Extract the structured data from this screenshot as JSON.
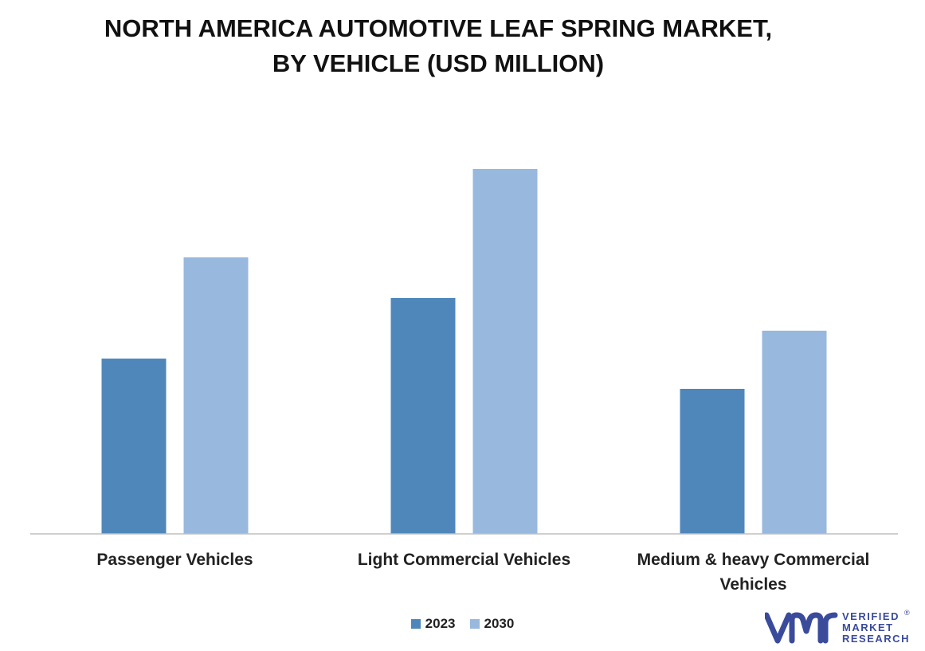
{
  "chart_data": {
    "type": "bar",
    "title_lines": [
      "NORTH AMERICA AUTOMOTIVE LEAF SPRING MARKET,",
      "BY VEHICLE (USD MILLION)"
    ],
    "categories": [
      {
        "lines": [
          "Passenger Vehicles"
        ]
      },
      {
        "lines": [
          "Light Commercial Vehicles"
        ]
      },
      {
        "lines": [
          "Medium & heavy Commercial",
          "Vehicles"
        ]
      }
    ],
    "series": [
      {
        "name": "2023",
        "color": "#4f87bb",
        "values": [
          220,
          296,
          182
        ]
      },
      {
        "name": "2030",
        "color": "#98b8de",
        "values": [
          347,
          458,
          255
        ]
      }
    ],
    "ylim": [
      0,
      500
    ],
    "grid": false,
    "legend_position": "bottom"
  },
  "brand": {
    "lines": [
      "VERIFIED",
      "MARKET",
      "RESEARCH"
    ],
    "reg_mark": "®",
    "color": "#3a4b9c"
  }
}
